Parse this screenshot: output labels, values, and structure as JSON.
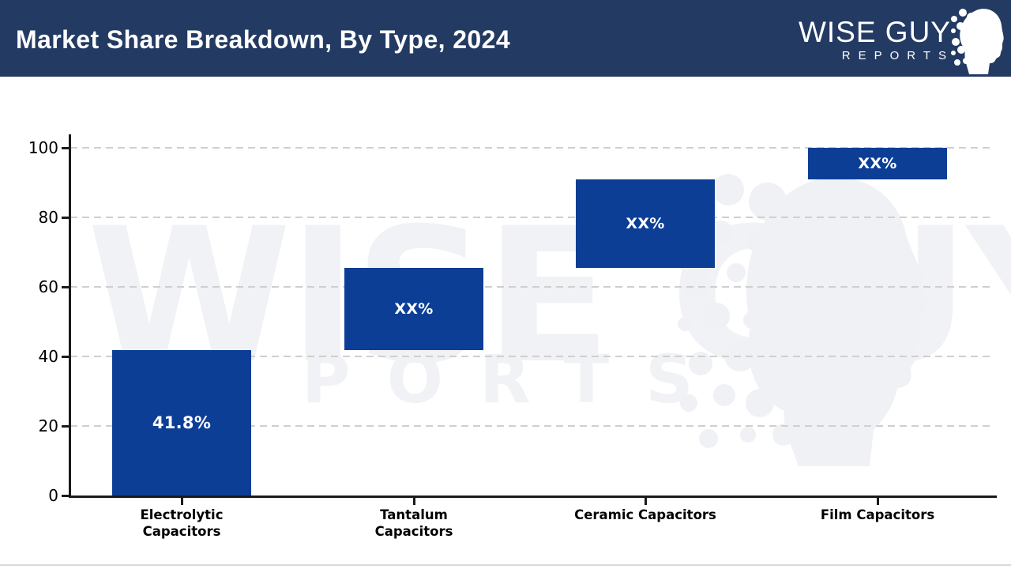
{
  "header": {
    "title": "Market Share Breakdown, By Type, 2024",
    "background_color": "#233A63",
    "text_color": "#FFFFFF"
  },
  "logo": {
    "line1": "WISE GUY",
    "line2": "REPORTS",
    "icon": "dotted-head-profile-icon"
  },
  "watermark": {
    "line1": "WISE GUY",
    "line2": "PORTS",
    "color": "#F1F2F5"
  },
  "chart_data": {
    "type": "bar",
    "variant": "waterfall",
    "title": "Market Share Breakdown, By Type, 2024",
    "categories": [
      "Electrolytic Capacitors",
      "Tantalum Capacitors",
      "Ceramic Capacitors",
      "Film Capacitors"
    ],
    "category_lines": [
      [
        "Electrolytic",
        "Capacitors"
      ],
      [
        "Tantalum",
        "Capacitors"
      ],
      [
        "Ceramic Capacitors"
      ],
      [
        "Film Capacitors"
      ]
    ],
    "segments": [
      {
        "category": "Electrolytic Capacitors",
        "start": 0,
        "end": 41.8,
        "value": 41.8,
        "label": "41.8%"
      },
      {
        "category": "Tantalum Capacitors",
        "start": 41.8,
        "end": 65.5,
        "value": 23.7,
        "label": "XX%"
      },
      {
        "category": "Ceramic Capacitors",
        "start": 65.5,
        "end": 91.0,
        "value": 25.5,
        "label": "XX%"
      },
      {
        "category": "Film Capacitors",
        "start": 91.0,
        "end": 100.0,
        "value": 9.0,
        "label": "XX%"
      }
    ],
    "yticks": [
      0,
      20,
      40,
      60,
      80,
      100
    ],
    "ylim": [
      0,
      104
    ],
    "xlabel": "",
    "ylabel": "",
    "grid": "horizontal-dashed",
    "legend": "none",
    "bar_color": "#0C3E96",
    "bar_label_color": "#FFFFFF",
    "axis_color": "#1A1A1A",
    "gridline_color": "#CFCFCF"
  }
}
